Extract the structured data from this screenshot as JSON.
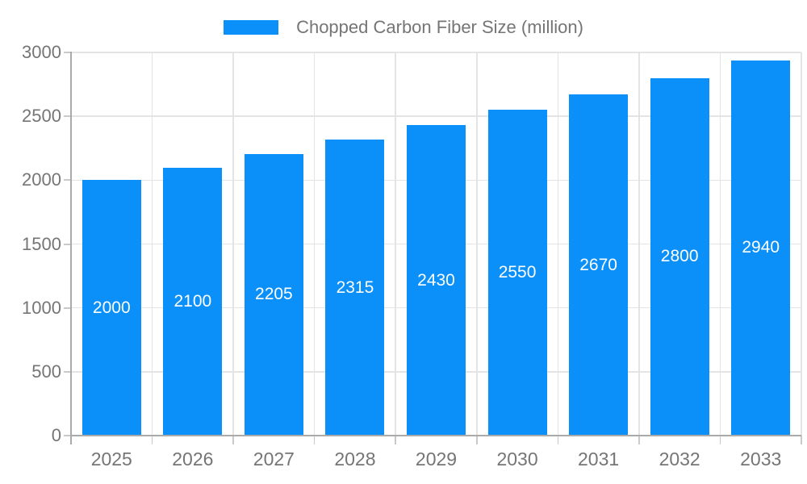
{
  "legend": {
    "label": "Chopped Carbon Fiber Size (million)"
  },
  "colors": {
    "bar": "#0a90f8",
    "grid": "#e4e4e4",
    "axis": "#aaaaaa",
    "tick": "#c9c9c9",
    "tick_text": "#757575",
    "bar_label_text": "#ffffff",
    "background": "#ffffff"
  },
  "chart_data": {
    "type": "bar",
    "title": "",
    "xlabel": "",
    "ylabel": "",
    "legend": [
      "Chopped Carbon Fiber Size (million)"
    ],
    "legend_position": "top-center",
    "categories": [
      "2025",
      "2026",
      "2027",
      "2028",
      "2029",
      "2030",
      "2031",
      "2032",
      "2033"
    ],
    "values": [
      2000,
      2100,
      2205,
      2315,
      2430,
      2550,
      2670,
      2800,
      2940
    ],
    "ylim": [
      0,
      3000
    ],
    "yticks": [
      0,
      500,
      1000,
      1500,
      2000,
      2500,
      3000
    ],
    "grid": true,
    "value_labels": "inside-center"
  }
}
